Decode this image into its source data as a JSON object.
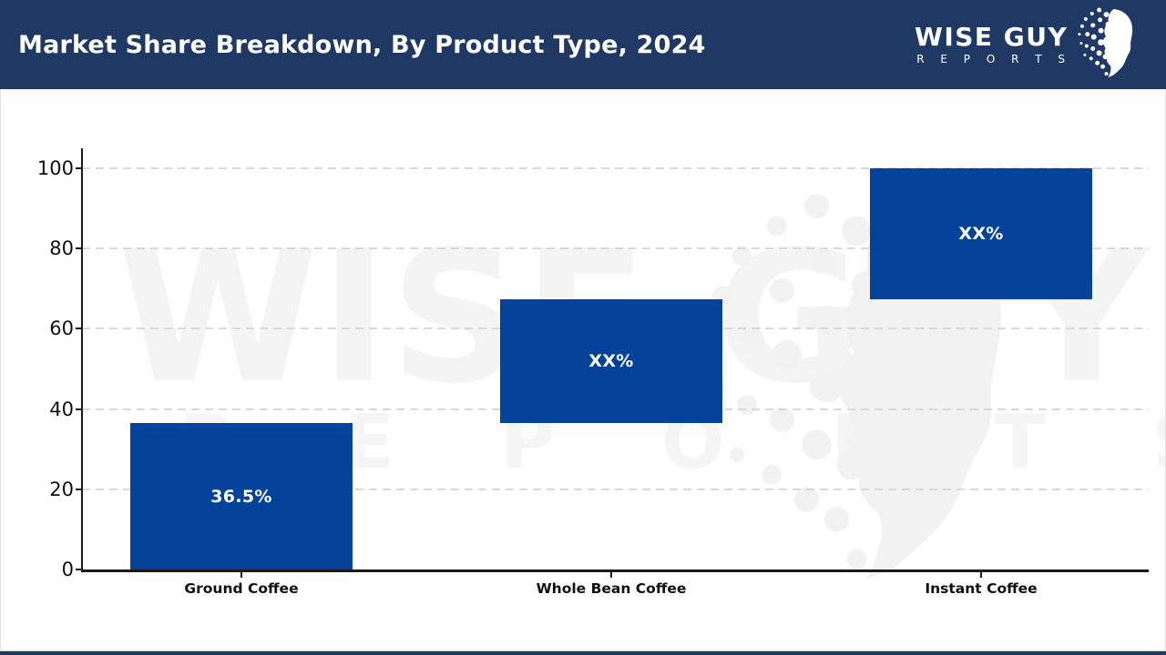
{
  "header": {
    "title": "Market Share Breakdown, By Product Type, 2024",
    "bg_color": "#203864",
    "logo": {
      "name": "WISE GUY",
      "subtitle": "R E P O R T S"
    }
  },
  "watermark": {
    "line1": "WISE GUY",
    "line2": "R E P O R T S"
  },
  "chart_data": {
    "type": "bar",
    "variant": "waterfall",
    "title": "Market Share Breakdown, By Product Type, 2024",
    "categories": [
      "Ground Coffee",
      "Whole Bean Coffee",
      "Instant Coffee"
    ],
    "segments": [
      {
        "category": "Ground Coffee",
        "start": 0,
        "end": 36.5,
        "label": "36.5%"
      },
      {
        "category": "Whole Bean Coffee",
        "start": 36.5,
        "end": 67.3,
        "label": "XX%"
      },
      {
        "category": "Instant Coffee",
        "start": 67.3,
        "end": 100,
        "label": "XX%"
      }
    ],
    "y_ticks": [
      0,
      20,
      40,
      60,
      80,
      100
    ],
    "ylim": [
      0,
      105
    ],
    "xlabel": "",
    "ylabel": "",
    "grid": "horizontal-dashed",
    "legend": "none",
    "bar_color": "#05429a",
    "bar_label_color": "#ffffff",
    "axis_color": "#1a1a1a",
    "grid_color": "#d9d9d9"
  }
}
